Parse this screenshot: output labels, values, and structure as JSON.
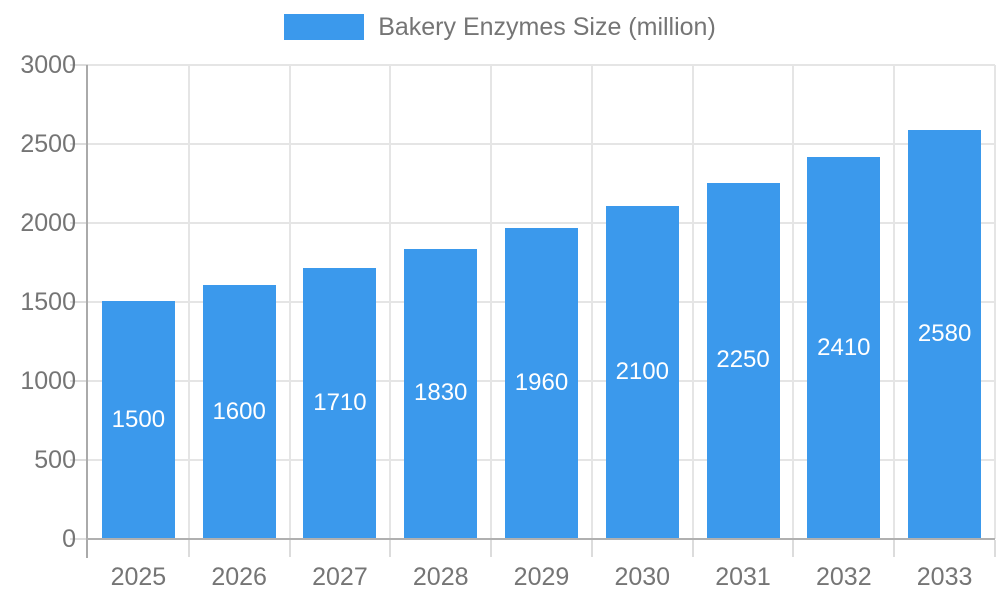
{
  "chart_data": {
    "type": "bar",
    "title": "Bakery Enzymes Size (million)",
    "legend_position": "top",
    "categories": [
      "2025",
      "2026",
      "2027",
      "2028",
      "2029",
      "2030",
      "2031",
      "2032",
      "2033"
    ],
    "series": [
      {
        "name": "Bakery Enzymes Size (million)",
        "values": [
          1500,
          1600,
          1710,
          1830,
          1960,
          2100,
          2250,
          2410,
          2580
        ]
      }
    ],
    "bar_labels": [
      "1500",
      "1600",
      "1710",
      "1830",
      "1960",
      "2100",
      "2250",
      "2410",
      "2580"
    ],
    "xlabel": "",
    "ylabel": "",
    "ylim": [
      0,
      3000
    ],
    "ytick_step": 500,
    "yticks": [
      "0",
      "500",
      "1000",
      "1500",
      "2000",
      "2500",
      "3000"
    ],
    "grid": true,
    "colors": {
      "bar": "#3B99EC",
      "axis_text": "#757575",
      "bar_label": "#FFFFFF",
      "grid_line": "#E5E5E5",
      "tick_line": "#DCDCDC",
      "axis_line": "#AAAAAA",
      "baseline": "#B0B0B0",
      "background": "#FFFFFF"
    }
  }
}
